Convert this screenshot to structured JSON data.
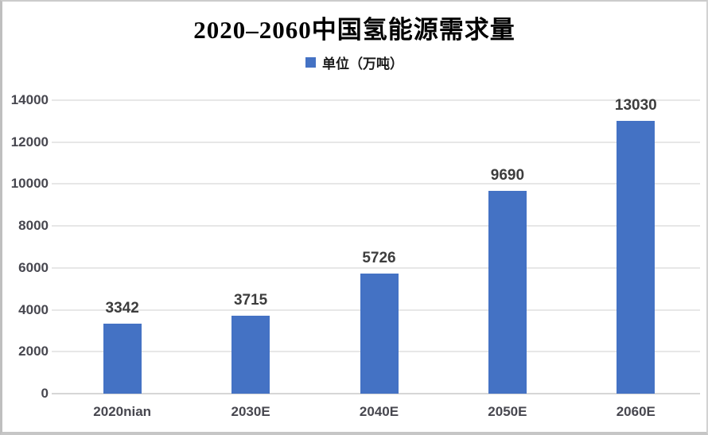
{
  "chart": {
    "title": "2020–2060中国氢能源需求量",
    "legend_label": "单位（万吨）"
  },
  "chart_data": {
    "type": "bar",
    "title": "2020–2060中国氢能源需求量",
    "legend": [
      "单位（万吨）"
    ],
    "legend_position": "top-center",
    "categories": [
      "2020nian",
      "2030E",
      "2040E",
      "2050E",
      "2060E"
    ],
    "values": [
      3342,
      3715,
      5726,
      9690,
      13030
    ],
    "data_labels": [
      "3342",
      "3715",
      "5726",
      "9690",
      "13030"
    ],
    "xlabel": "",
    "ylabel": "",
    "ylim": [
      0,
      14000
    ],
    "ytick_interval": 2000,
    "yticks": [
      0,
      2000,
      4000,
      6000,
      8000,
      10000,
      12000,
      14000
    ],
    "grid": true,
    "colors": {
      "bar": "#4472C4",
      "legend_swatch": "#4472C4",
      "gridline": "#e7e7e7",
      "baseline": "#d6d6d6",
      "axis_text": "#47474f",
      "data_label_text": "#3d3d3d",
      "title_text": "#000000",
      "background": "#ffffff",
      "frame_border": "#c6c6c6"
    }
  }
}
